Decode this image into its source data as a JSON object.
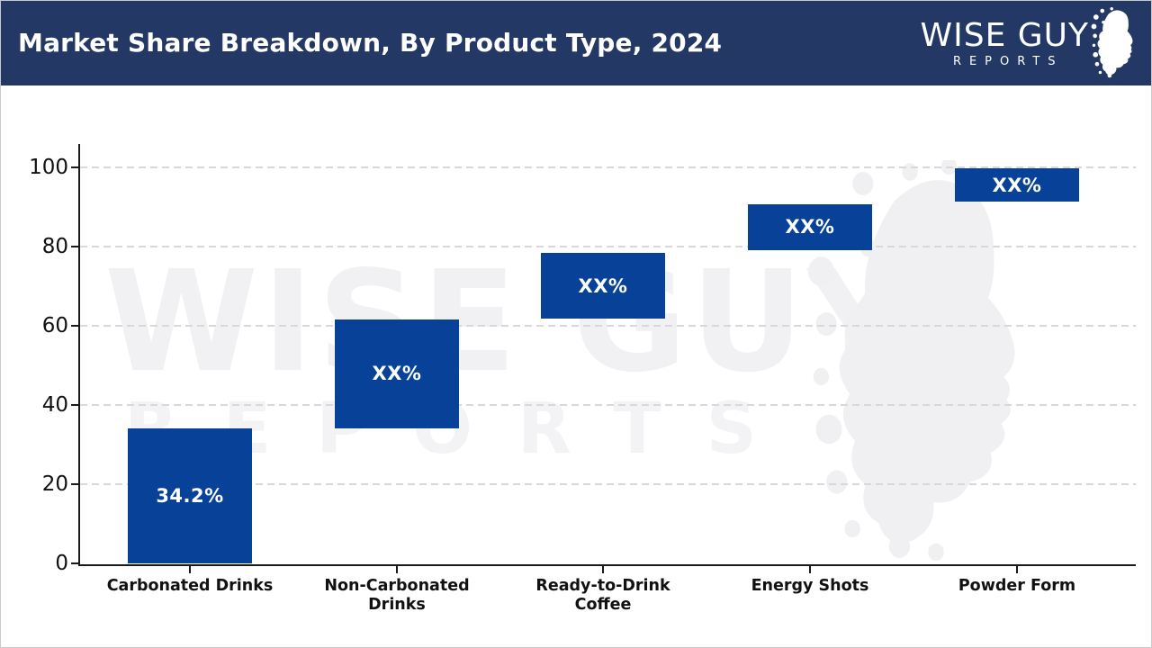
{
  "header": {
    "title": "Market Share Breakdown, By Product Type, 2024",
    "logo_line1": "WISE GUY",
    "logo_line2": "REPORTS",
    "bg_color": "#233865"
  },
  "watermark": {
    "line1": "WISE GUY",
    "line2": "REPORTS"
  },
  "chart_data": {
    "type": "bar",
    "subtype": "waterfall",
    "title": "Market Share Breakdown, By Product Type, 2024",
    "categories": [
      "Carbonated Drinks",
      "Non-Carbonated\nDrinks",
      "Ready-to-Drink\nCoffee",
      "Energy Shots",
      "Powder Form"
    ],
    "segments": [
      {
        "category": "Carbonated Drinks",
        "start": 0,
        "end": 34.2,
        "label": "34.2%"
      },
      {
        "category": "Non-Carbonated Drinks",
        "start": 34.2,
        "end": 61.6,
        "label": "XX%"
      },
      {
        "category": "Ready-to-Drink Coffee",
        "start": 61.8,
        "end": 78.4,
        "label": "XX%"
      },
      {
        "category": "Energy Shots",
        "start": 79.0,
        "end": 90.8,
        "label": "XX%"
      },
      {
        "category": "Powder Form",
        "start": 91.3,
        "end": 99.8,
        "label": "XX%"
      }
    ],
    "y_ticks": [
      0,
      20,
      40,
      60,
      80,
      100
    ],
    "ylim": [
      0,
      100
    ],
    "xlabel": "",
    "ylabel": "",
    "bar_color": "#084298",
    "grid": "horizontal-dashed",
    "legend": "none"
  }
}
